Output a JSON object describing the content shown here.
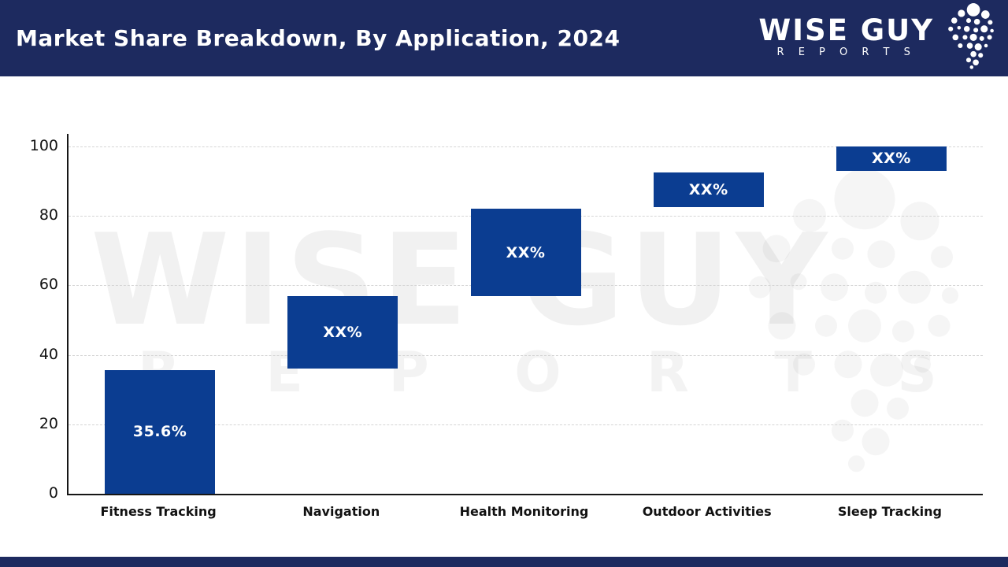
{
  "header": {
    "title": "Market Share Breakdown, By Application, 2024",
    "logo": {
      "line1": "WISE GUY",
      "line2": "R E P O R T S"
    }
  },
  "watermark": {
    "line1": "WISE GUY",
    "line2": "R E P O R T S"
  },
  "chart_data": {
    "type": "bar",
    "subtype": "floating-waterfall-bars",
    "title": "Market Share Breakdown, By Application, 2024",
    "categories": [
      "Fitness Tracking",
      "Navigation",
      "Health Monitoring",
      "Outdoor Activities",
      "Sleep Tracking"
    ],
    "bars": [
      {
        "category": "Fitness Tracking",
        "start": 0,
        "end": 35.6,
        "label": "35.6%"
      },
      {
        "category": "Navigation",
        "start": 36,
        "end": 57,
        "label": "XX%"
      },
      {
        "category": "Health Monitoring",
        "start": 57,
        "end": 82,
        "label": "XX%"
      },
      {
        "category": "Outdoor Activities",
        "start": 82.5,
        "end": 92.5,
        "label": "XX%"
      },
      {
        "category": "Sleep Tracking",
        "start": 93,
        "end": 100,
        "label": "XX%"
      }
    ],
    "ylim": [
      0,
      100
    ],
    "yticks": [
      0,
      20,
      40,
      60,
      80,
      100
    ],
    "grid": "dashed-horizontal",
    "legend": "none",
    "bar_color": "#0b3d91",
    "bar_label_color": "#ffffff",
    "header_color": "#1d2a5f"
  }
}
